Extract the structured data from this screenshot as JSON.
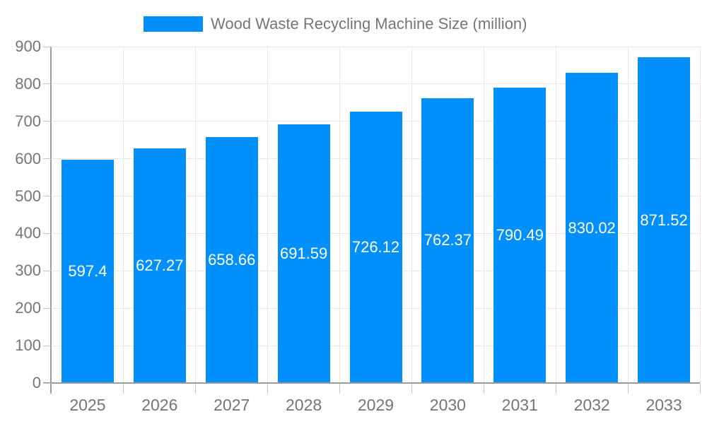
{
  "chart_data": {
    "type": "bar",
    "title": "Wood Waste Recycling Machine Size (million)",
    "categories": [
      "2025",
      "2026",
      "2027",
      "2028",
      "2029",
      "2030",
      "2031",
      "2032",
      "2033"
    ],
    "values": [
      597.4,
      627.27,
      658.66,
      691.59,
      726.12,
      762.37,
      790.49,
      830.02,
      871.52
    ],
    "series": [
      {
        "name": "Wood Waste Recycling Machine Size (million)",
        "values": [
          597.4,
          627.27,
          658.66,
          691.59,
          726.12,
          762.37,
          790.49,
          830.02,
          871.52
        ]
      }
    ],
    "xlabel": "",
    "ylabel": "",
    "ylim": [
      0,
      900
    ],
    "ytick_step": 100,
    "ytick_labels": [
      "0",
      "100",
      "200",
      "300",
      "400",
      "500",
      "600",
      "700",
      "800",
      "900"
    ],
    "grid": true,
    "legend_position": "top",
    "value_label_position": "inside-center",
    "colors": {
      "bar": "#008ffb",
      "axis_text": "#757575",
      "grid": "#e7e7e7",
      "axis_line": "#9a9a9a",
      "tick": "#c2c2c2",
      "value_label": "#ffffff"
    }
  }
}
